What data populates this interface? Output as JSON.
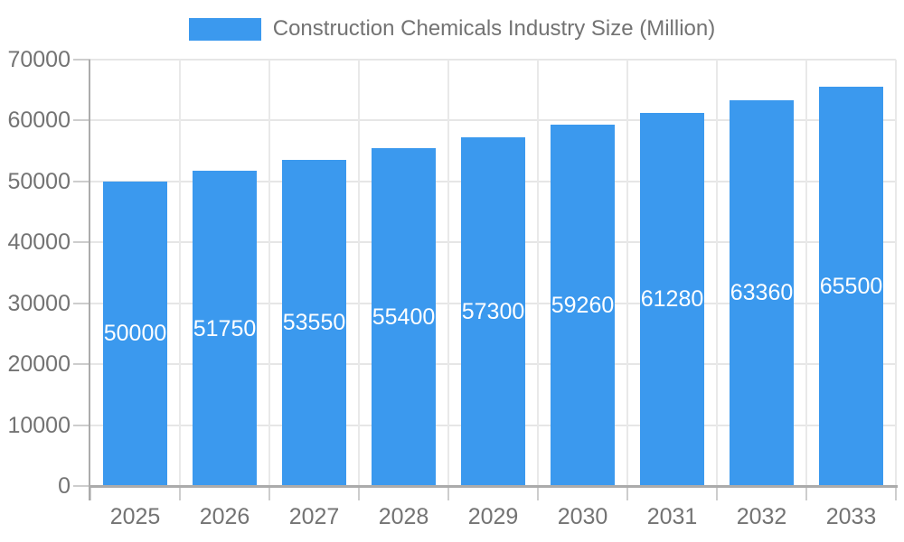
{
  "legend": {
    "label": "Construction Chemicals Industry Size (Million)"
  },
  "colors": {
    "bar": "#3B99EE",
    "bar_label": "#FFFFFF",
    "axis_text": "#737373",
    "axis_line": "#ABABAB",
    "grid_line": "#E6E6E6",
    "tick_line": "#CDCDCD",
    "background": "#FFFFFF"
  },
  "chart_data": {
    "type": "bar",
    "title": "Construction Chemicals Industry Size (Million)",
    "categories": [
      "2025",
      "2026",
      "2027",
      "2028",
      "2029",
      "2030",
      "2031",
      "2032",
      "2033"
    ],
    "values": [
      50000,
      51750,
      53550,
      55400,
      57300,
      59260,
      61280,
      63360,
      65500
    ],
    "series": [
      {
        "name": "Construction Chemicals Industry Size (Million)",
        "values": [
          50000,
          51750,
          53550,
          55400,
          57300,
          59260,
          61280,
          63360,
          65500
        ]
      }
    ],
    "xlabel": "",
    "ylabel": "",
    "ylim": [
      0,
      70000
    ],
    "ytick_step": 10000,
    "y_ticks": [
      "0",
      "10000",
      "20000",
      "30000",
      "40000",
      "50000",
      "60000",
      "70000"
    ],
    "grid": true,
    "legend_position": "top",
    "bar_labels_visible": true,
    "bar_label_position": "inside-middle"
  }
}
